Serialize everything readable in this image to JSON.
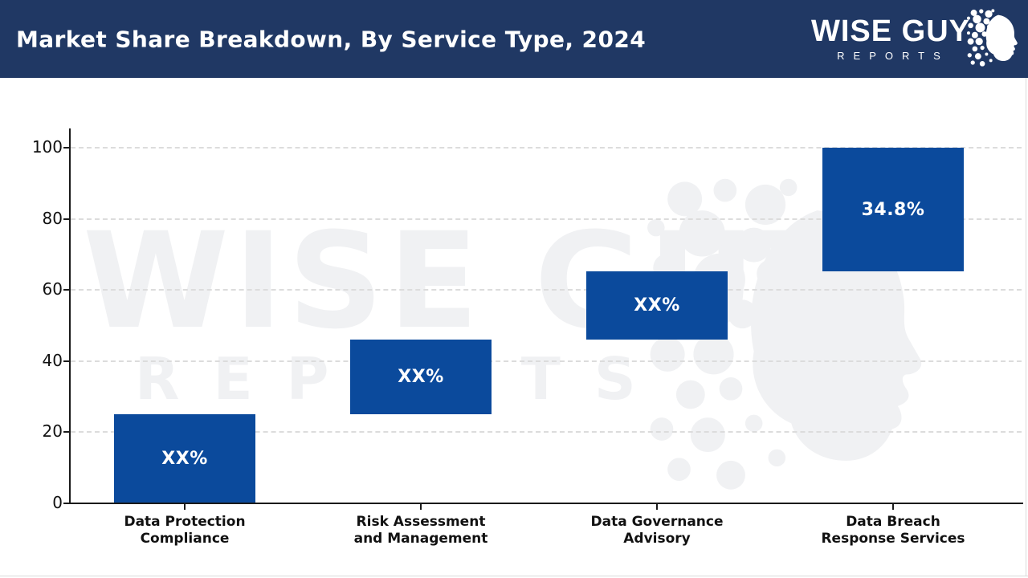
{
  "header": {
    "title": "Market Share Breakdown, By Service Type, 2024",
    "brand": {
      "line1": "WISE GUY",
      "line2": "REPORTS"
    },
    "bg_color": "#203864"
  },
  "watermark": {
    "line1": "WISE GUY",
    "line2": "REPORTS"
  },
  "chart_data": {
    "type": "bar",
    "variant": "floating_waterfall_segments",
    "title": "Market Share Breakdown, By Service Type, 2024",
    "categories": [
      "Data Protection Compliance",
      "Risk Assessment and Management",
      "Data Governance Advisory",
      "Data Breach Response Services"
    ],
    "category_label_lines": [
      [
        "Data Protection",
        "Compliance"
      ],
      [
        "Risk Assessment",
        "and Management"
      ],
      [
        "Data Governance",
        "Advisory"
      ],
      [
        "Data Breach",
        "Response Services"
      ]
    ],
    "series": [
      {
        "name": "Market share by service type",
        "points": [
          {
            "start": 0,
            "end": 25.0,
            "label": "XX%"
          },
          {
            "start": 25.0,
            "end": 46.0,
            "label": "XX%"
          },
          {
            "start": 46.0,
            "end": 65.2,
            "label": "XX%"
          },
          {
            "start": 65.2,
            "end": 100.0,
            "label": "34.8%"
          }
        ]
      }
    ],
    "ylim": [
      0,
      105
    ],
    "yticks": [
      0,
      20,
      40,
      60,
      80,
      100
    ],
    "grid": "horizontal-dashed",
    "legend": "none",
    "bar_color": "#0b4a9c",
    "bar_label_color": "#ffffff",
    "axis_color": "#1a1a1a",
    "grid_color": "#dcdcdc"
  }
}
